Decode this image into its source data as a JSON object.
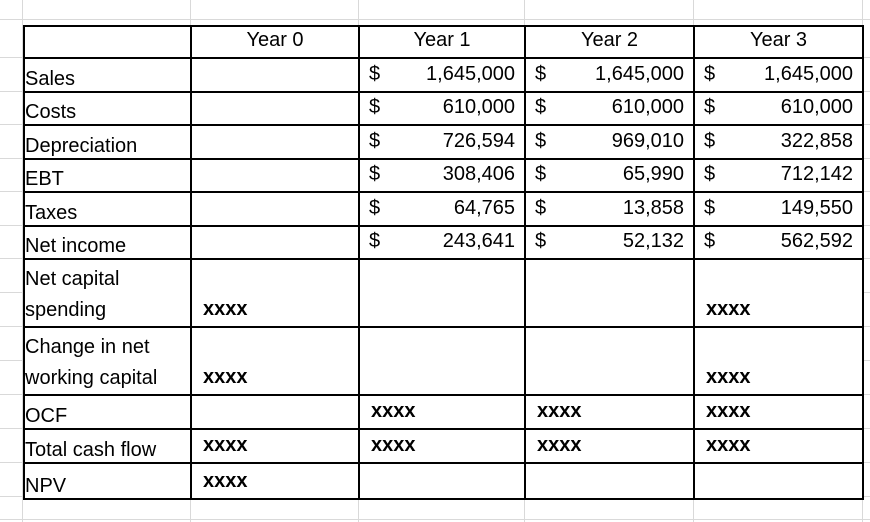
{
  "table": {
    "currency_symbol": "$",
    "placeholder": "xxxx",
    "colors": {
      "highlight": "#91c8ea",
      "border": "#000000",
      "gridline": "#d9d9d9"
    },
    "columns": [
      "",
      "Year 0",
      "Year 1",
      "Year 2",
      "Year 3"
    ],
    "rows": [
      {
        "label": "Sales",
        "tall": false,
        "cells": [
          {
            "type": "empty"
          },
          {
            "type": "currency",
            "value": "1,645,000"
          },
          {
            "type": "currency",
            "value": "1,645,000"
          },
          {
            "type": "currency",
            "value": "1,645,000"
          }
        ]
      },
      {
        "label": "Costs",
        "tall": false,
        "cells": [
          {
            "type": "empty"
          },
          {
            "type": "currency",
            "value": "610,000"
          },
          {
            "type": "currency",
            "value": "610,000"
          },
          {
            "type": "currency",
            "value": "610,000"
          }
        ]
      },
      {
        "label": "Depreciation",
        "tall": false,
        "cells": [
          {
            "type": "empty"
          },
          {
            "type": "currency",
            "value": "726,594"
          },
          {
            "type": "currency",
            "value": "969,010"
          },
          {
            "type": "currency",
            "value": "322,858"
          }
        ]
      },
      {
        "label": "EBT",
        "tall": false,
        "cells": [
          {
            "type": "empty"
          },
          {
            "type": "currency",
            "value": "308,406"
          },
          {
            "type": "currency",
            "value": "65,990"
          },
          {
            "type": "currency",
            "value": "712,142"
          }
        ]
      },
      {
        "label": "Taxes",
        "tall": false,
        "cells": [
          {
            "type": "empty"
          },
          {
            "type": "currency",
            "value": "64,765"
          },
          {
            "type": "currency",
            "value": "13,858"
          },
          {
            "type": "currency",
            "value": "149,550"
          }
        ]
      },
      {
        "label": "Net income",
        "tall": false,
        "cells": [
          {
            "type": "empty"
          },
          {
            "type": "currency",
            "value": "243,641"
          },
          {
            "type": "currency",
            "value": "52,132"
          },
          {
            "type": "currency",
            "value": "562,592"
          }
        ]
      },
      {
        "label": "Net capital spending",
        "tall": true,
        "cells": [
          {
            "type": "highlight",
            "value": "xxxx"
          },
          {
            "type": "empty"
          },
          {
            "type": "empty"
          },
          {
            "type": "highlight",
            "value": "xxxx"
          }
        ]
      },
      {
        "label": "Change in net working capital",
        "tall": true,
        "cells": [
          {
            "type": "highlight",
            "value": "xxxx"
          },
          {
            "type": "empty"
          },
          {
            "type": "empty"
          },
          {
            "type": "highlight",
            "value": "xxxx"
          }
        ]
      },
      {
        "label": "OCF",
        "tall": false,
        "cells": [
          {
            "type": "empty"
          },
          {
            "type": "highlight",
            "value": "xxxx"
          },
          {
            "type": "highlight",
            "value": "xxxx"
          },
          {
            "type": "highlight",
            "value": "xxxx"
          }
        ]
      },
      {
        "label": "Total cash flow",
        "tall": false,
        "cells": [
          {
            "type": "highlight",
            "value": "xxxx"
          },
          {
            "type": "highlight",
            "value": "xxxx"
          },
          {
            "type": "highlight",
            "value": "xxxx"
          },
          {
            "type": "highlight",
            "value": "xxxx"
          }
        ]
      },
      {
        "label": "NPV",
        "tall": false,
        "cells": [
          {
            "type": "highlight",
            "value": "xxxx"
          },
          {
            "type": "empty"
          },
          {
            "type": "empty"
          },
          {
            "type": "empty"
          }
        ]
      }
    ]
  }
}
